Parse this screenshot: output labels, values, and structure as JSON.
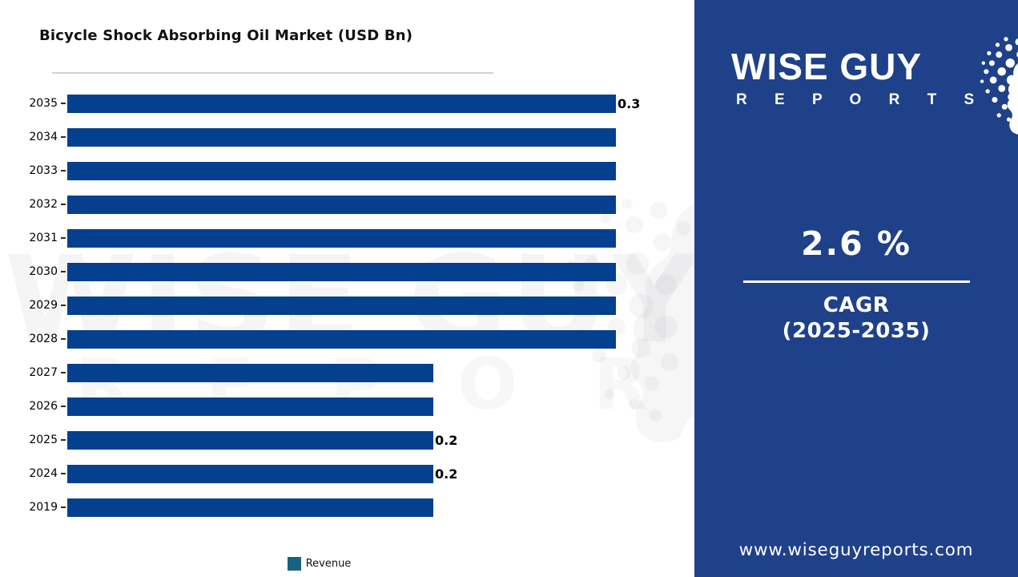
{
  "chart_data": {
    "type": "bar",
    "orientation": "horizontal",
    "title": "Bicycle Shock Absorbing Oil Market (USD Bn)",
    "categories": [
      "2035",
      "2034",
      "2033",
      "2032",
      "2031",
      "2030",
      "2029",
      "2028",
      "2027",
      "2026",
      "2025",
      "2024",
      "2019"
    ],
    "values": [
      0.3,
      0.3,
      0.3,
      0.3,
      0.3,
      0.3,
      0.3,
      0.3,
      0.2,
      0.2,
      0.2,
      0.2,
      0.2
    ],
    "value_labels": [
      "0.3",
      "",
      "",
      "",
      "",
      "",
      "",
      "",
      "",
      "",
      "0.2",
      "0.2",
      ""
    ],
    "xlim": [
      0,
      0.34
    ],
    "grid": false,
    "bar_color": "#05408f",
    "legend_position": "bottom",
    "legend": [
      {
        "label": "Revenue",
        "color": "#186384"
      }
    ]
  },
  "watermark": {
    "line1": "WISE GUY",
    "line2": "R E P O R T S"
  },
  "brand": {
    "panel_color": "#1e4189",
    "logo_line1": "WISE GUY",
    "logo_line2": "R E P O R T S",
    "cagr_value": "2.6 %",
    "cagr_label_line1": "CAGR",
    "cagr_label_line2": "(2025-2035)",
    "website": "www.wiseguyreports.com"
  }
}
